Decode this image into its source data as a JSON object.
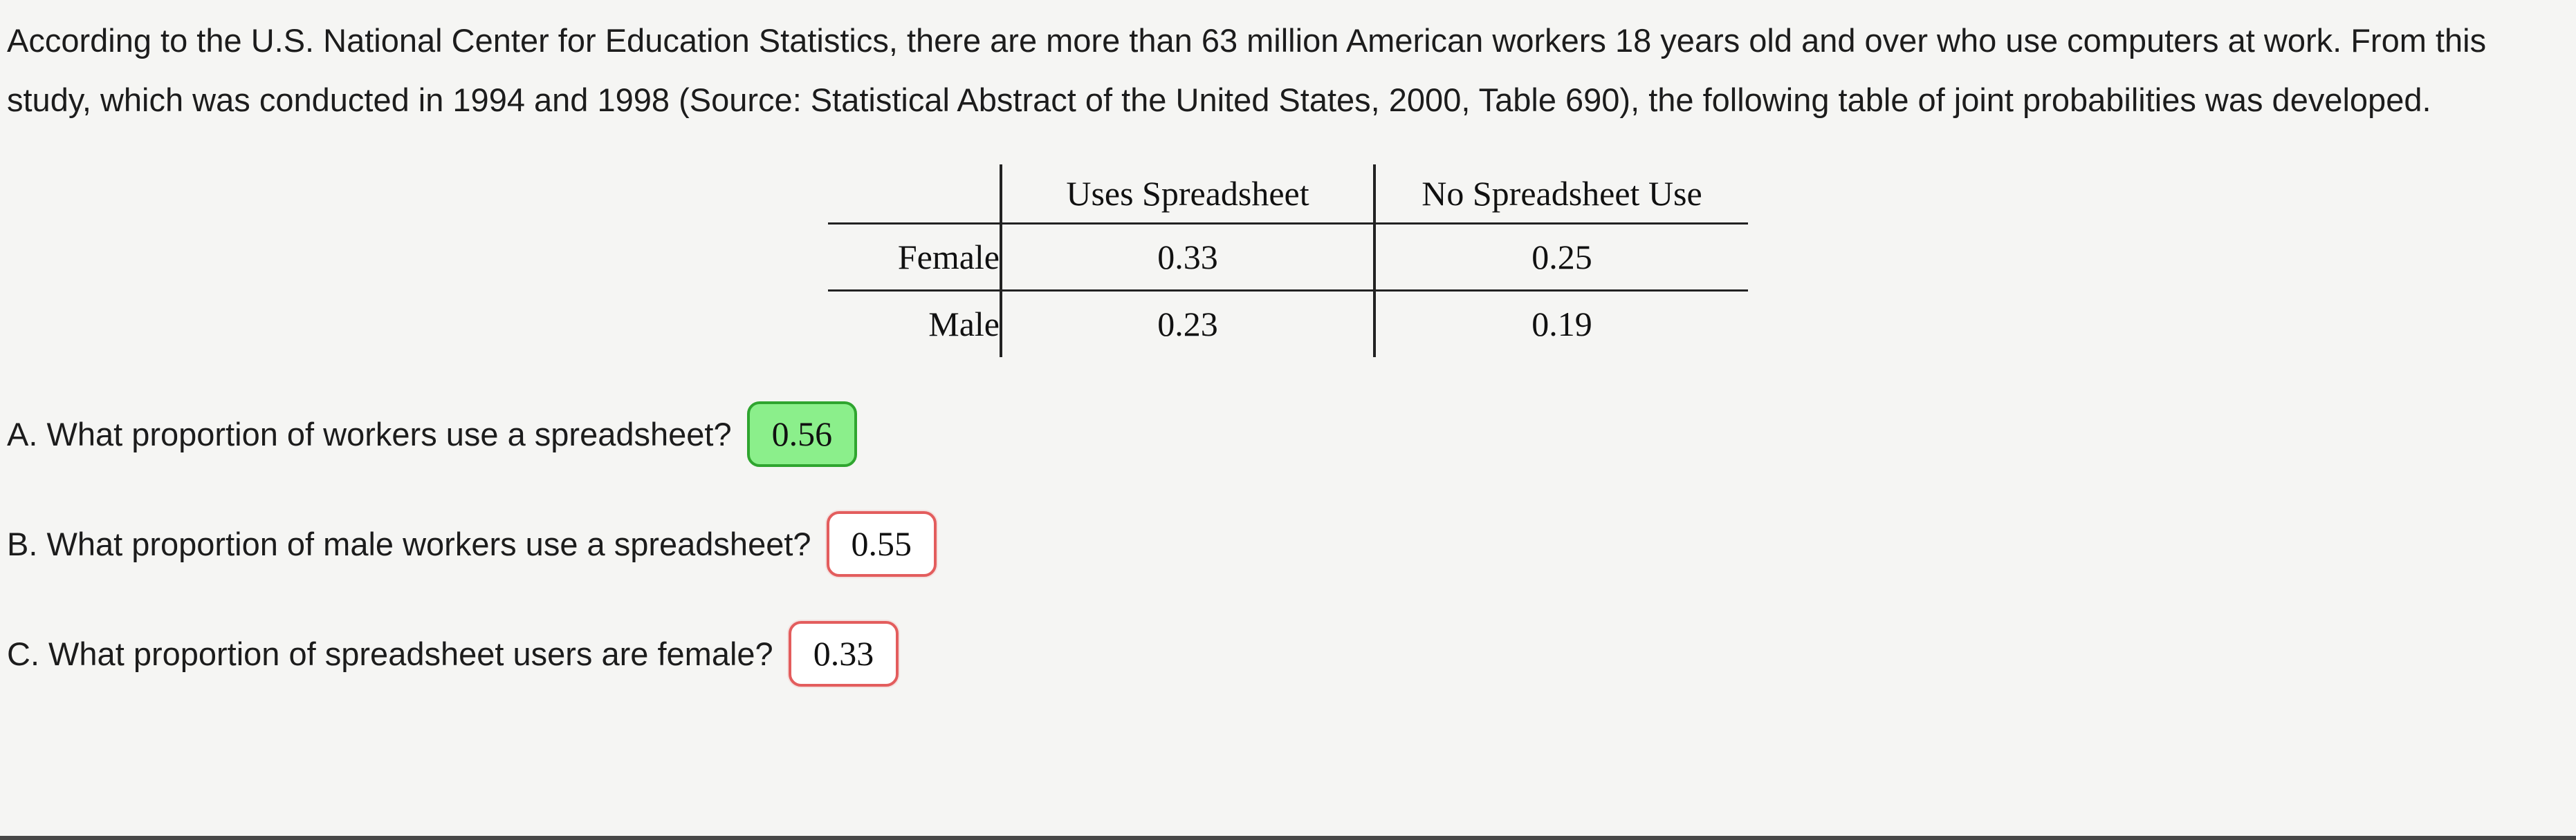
{
  "page": {
    "background": "#f5f5f3"
  },
  "intro": {
    "text": "According to the U.S. National Center for Education Statistics, there are more than 63 million American workers 18 years old and over who use computers at work. From this study, which was conducted in 1994 and 1998 (Source: Statistical Abstract of the United States, 2000, Table 690), the following table of joint probabilities was developed."
  },
  "table": {
    "col_headers": [
      "Uses Spreadsheet",
      "No Spreadsheet Use"
    ],
    "rows": [
      {
        "label": "Female",
        "values": [
          "0.33",
          "0.25"
        ]
      },
      {
        "label": "Male",
        "values": [
          "0.23",
          "0.19"
        ]
      }
    ]
  },
  "questions": [
    {
      "id": "A",
      "text": "A. What proportion of workers use a spreadsheet?",
      "answer": "0.56",
      "status": "correct"
    },
    {
      "id": "B",
      "text": "B. What proportion of male workers use a spreadsheet?",
      "answer": "0.55",
      "status": "incorrect"
    },
    {
      "id": "C",
      "text": "C. What proportion of spreadsheet users are female?",
      "answer": "0.33",
      "status": "incorrect"
    }
  ],
  "colors": {
    "correct_bg": "#8bef8b",
    "correct_border": "#2fa52f",
    "incorrect_bg": "#ffffff",
    "incorrect_border": "#e35d5d"
  }
}
